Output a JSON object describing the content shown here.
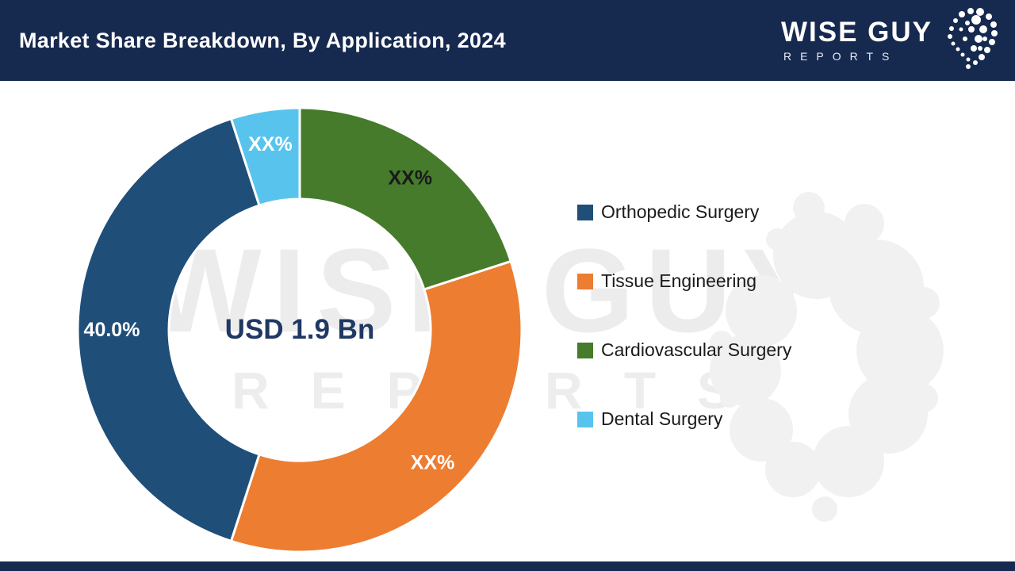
{
  "header": {
    "title": "Market Share Breakdown, By Application, 2024",
    "logo": {
      "line1": "WISE GUY",
      "line2": "REPORTS"
    }
  },
  "watermark": {
    "line1": "WISE GUY",
    "line2": "REPORTS"
  },
  "chart_data": {
    "type": "pie",
    "subtype": "donut",
    "title": "Market Share Breakdown, By Application, 2024",
    "center_label": "USD 1.9 Bn",
    "legend_position": "right",
    "segments": [
      {
        "name": "Cardiovascular Surgery",
        "value": 20,
        "label": "XX%",
        "color": "#457B2B",
        "label_color": "#1a1a1a"
      },
      {
        "name": "Tissue Engineering",
        "value": 35,
        "label": "XX%",
        "color": "#ED7D31",
        "label_color": "#ffffff"
      },
      {
        "name": "Orthopedic Surgery",
        "value": 40,
        "label": "40.0%",
        "color": "#1F4E79",
        "label_color": "#ffffff"
      },
      {
        "name": "Dental Surgery",
        "value": 5,
        "label": "XX%",
        "color": "#58C4ED",
        "label_color": "#ffffff"
      }
    ],
    "legend": [
      {
        "label": "Orthopedic Surgery",
        "color": "#1F4E79"
      },
      {
        "label": "Tissue Engineering",
        "color": "#ED7D31"
      },
      {
        "label": "Cardiovascular Surgery",
        "color": "#457B2B"
      },
      {
        "label": "Dental Surgery",
        "color": "#58C4ED"
      }
    ],
    "colors": {
      "header_bg": "#16294F",
      "center_text": "#1F3864",
      "watermark": "#ececec"
    }
  }
}
